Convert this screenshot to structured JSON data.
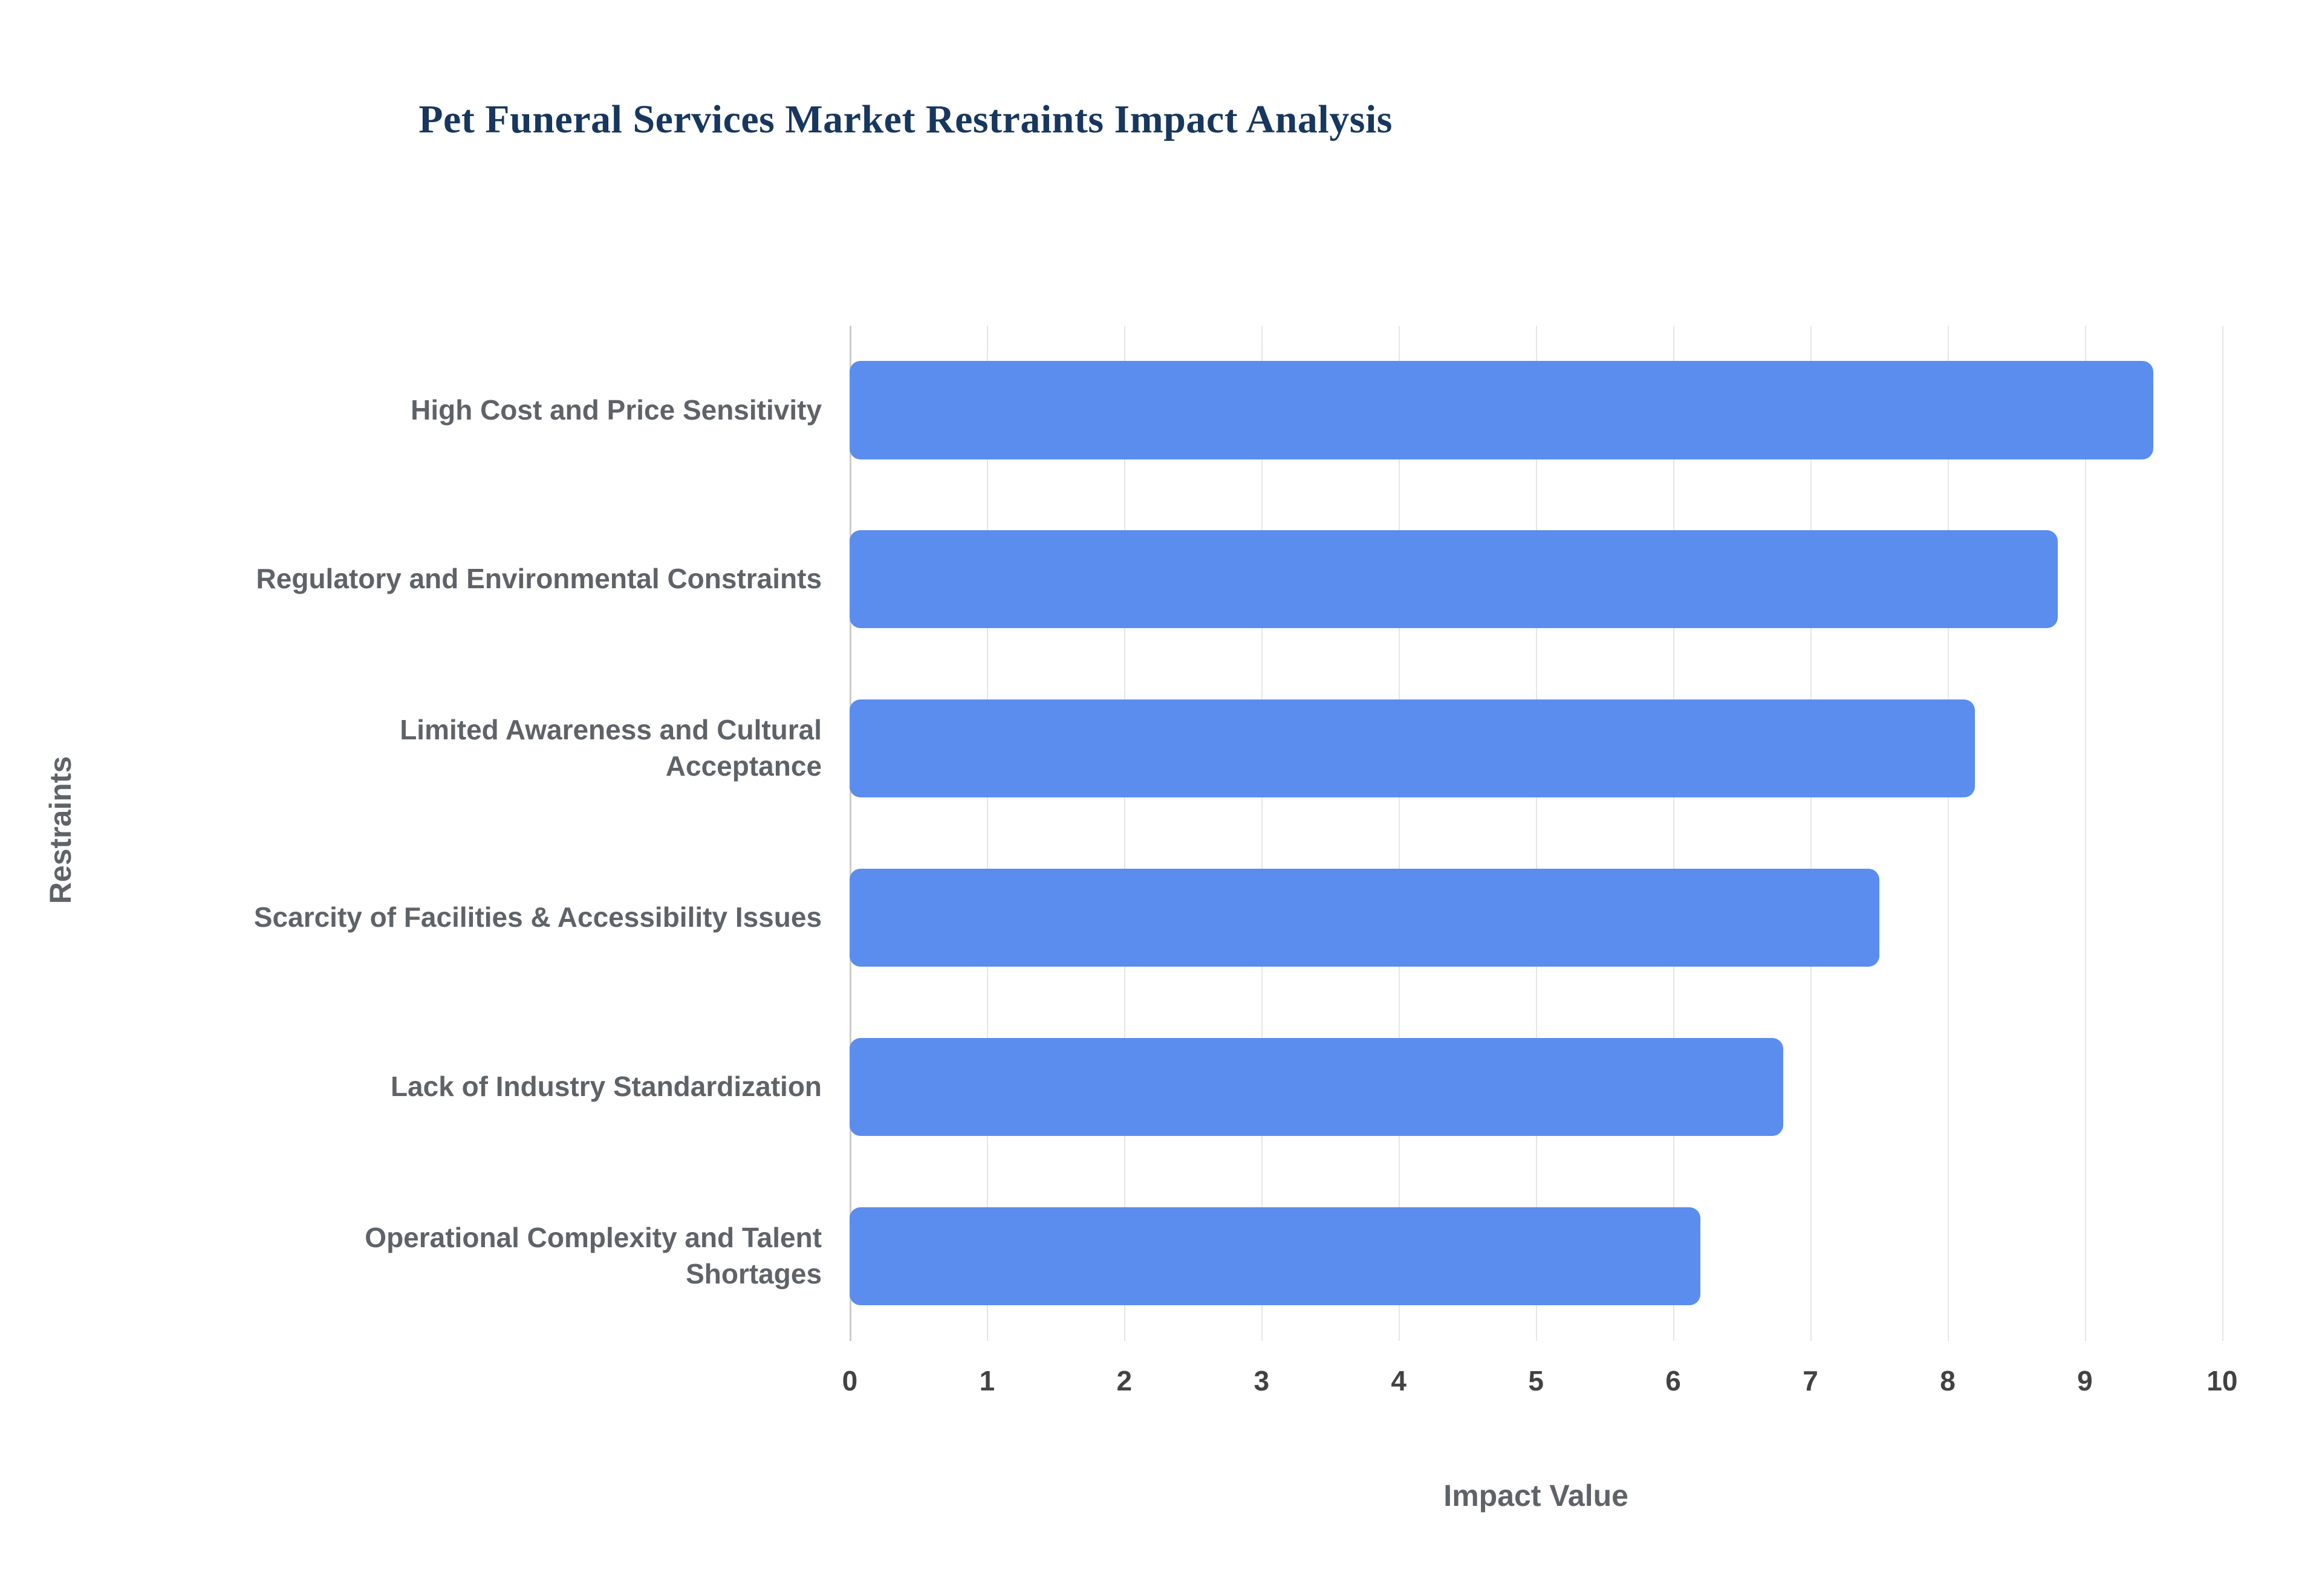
{
  "chart_data": {
    "type": "bar",
    "orientation": "horizontal",
    "title": "Pet Funeral Services Market Restraints Impact Analysis",
    "xlabel": "Impact Value",
    "ylabel": "Restraints",
    "xlim": [
      0,
      10
    ],
    "xticks": [
      0,
      1,
      2,
      3,
      4,
      5,
      6,
      7,
      8,
      9,
      10
    ],
    "grid": true,
    "legend": "none",
    "bar_color": "#5b8def",
    "categories": [
      "High Cost and Price Sensitivity",
      "Regulatory and Environmental Constraints",
      "Limited Awareness and Cultural Acceptance",
      "Scarcity of Facilities & Accessibility Issues",
      "Lack of Industry Standardization",
      "Operational Complexity and Talent Shortages"
    ],
    "values": [
      9.5,
      8.8,
      8.2,
      7.5,
      6.8,
      6.2
    ]
  }
}
